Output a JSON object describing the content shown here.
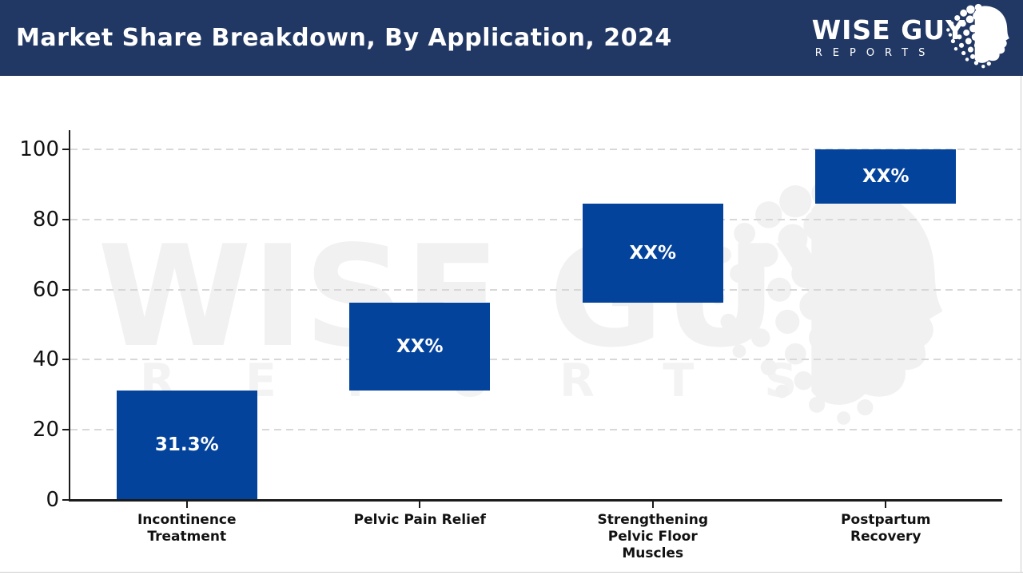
{
  "header": {
    "title": "Market Share Breakdown, By Application, 2024",
    "logo": {
      "line1": "WISE GUY",
      "line2": "REPORTS"
    }
  },
  "watermark": {
    "line1": "WISE GUY",
    "line2": "REPORTS"
  },
  "colors": {
    "header_bg": "#223864",
    "bar": "#04439b",
    "grid": "#d8d8d8",
    "axis": "#1a1a1a",
    "tick_text": "#111111",
    "bar_label_text": "#ffffff",
    "watermark_gray": "#f1f1f1"
  },
  "chart_data": {
    "type": "bar",
    "subtype": "floating-waterfall-segments",
    "title": "Market Share Breakdown, By Application, 2024",
    "categories": [
      [
        "Incontinence",
        "Treatment"
      ],
      [
        "Pelvic Pain Relief"
      ],
      [
        "Strengthening",
        "Pelvic Floor",
        "Muscles"
      ],
      [
        "Postpartum",
        "Recovery"
      ]
    ],
    "segments": [
      {
        "category": "Incontinence Treatment",
        "start": 0,
        "end": 31.3,
        "label": "31.3%"
      },
      {
        "category": "Pelvic Pain Relief",
        "start": 31.3,
        "end": 56.3,
        "label": "XX%"
      },
      {
        "category": "Strengthening Pelvic Floor Muscles",
        "start": 56.3,
        "end": 84.6,
        "label": "XX%"
      },
      {
        "category": "Postpartum Recovery",
        "start": 84.6,
        "end": 100,
        "label": "XX%"
      }
    ],
    "xlabel": "",
    "ylabel": "",
    "ylim": [
      0,
      100
    ],
    "yticks": [
      0,
      20,
      40,
      60,
      80,
      100
    ],
    "grid": "dashed-horizontal",
    "legend": "none"
  }
}
